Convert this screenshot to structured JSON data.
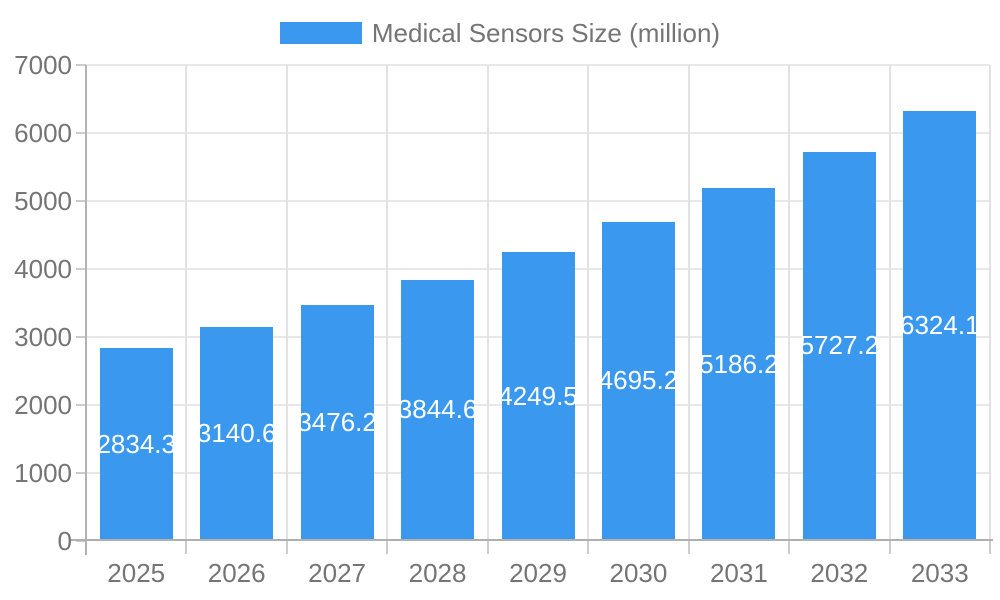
{
  "chart_data": {
    "type": "bar",
    "title": "Medical Sensors Size (million)",
    "legend_position": "top",
    "categories": [
      "2025",
      "2026",
      "2027",
      "2028",
      "2029",
      "2030",
      "2031",
      "2032",
      "2033"
    ],
    "series": [
      {
        "name": "Medical Sensors Size (million)",
        "values": [
          2834.3,
          3140.6,
          3476.2,
          3844.6,
          4249.5,
          4695.2,
          5186.2,
          5727.2,
          6324.1
        ]
      }
    ],
    "value_labels": [
      "2834.3",
      "3140.6",
      "3476.2",
      "3844.6",
      "4249.5",
      "4695.2",
      "5186.2",
      "5727.2",
      "6324.1"
    ],
    "xlabel": "",
    "ylabel": "",
    "ylim": [
      0,
      7000
    ],
    "ytick_step": 1000,
    "yticks": [
      0,
      1000,
      2000,
      3000,
      4000,
      5000,
      6000,
      7000
    ],
    "grid": "on",
    "colors": {
      "bar": "#3A99EE",
      "axis_text": "#757575",
      "value_label_text": "#ffffff",
      "gridline": "#e8e8e8",
      "vertical_gridline": "#e2e2e2",
      "axis_line": "#b0b0b0",
      "tick": "#cccccc",
      "background": "#ffffff"
    }
  }
}
